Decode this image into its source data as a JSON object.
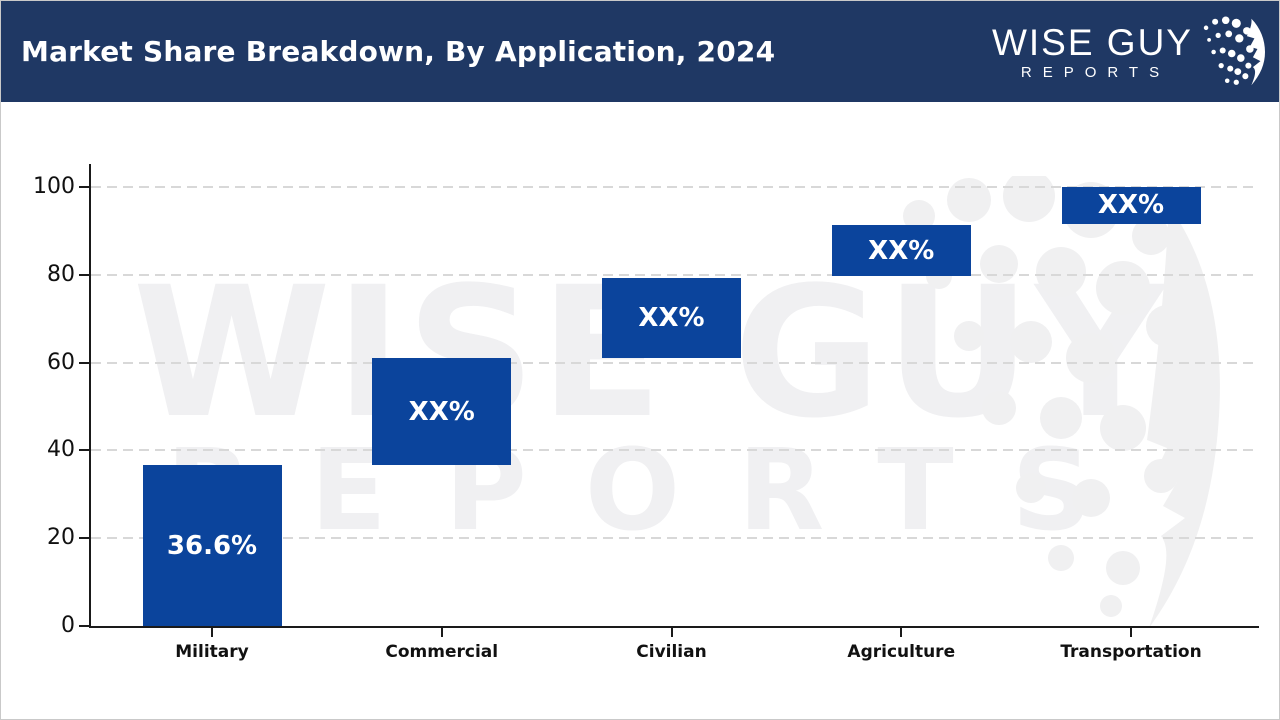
{
  "header": {
    "title": "Market Share Breakdown, By Application, 2024",
    "logo": {
      "line1": "WISE GUY",
      "line2": "REPORTS"
    }
  },
  "watermark": {
    "line1": "WISE GUY",
    "line2": "REPORTS"
  },
  "colors": {
    "header_bg": "#1f3864",
    "title_text": "#ffffff",
    "bar": "#0b449c",
    "bar_label": "#ffffff",
    "grid": "#d8d8d8",
    "axis": "#1a1a1a",
    "tick_text": "#111111",
    "watermark": "#f0f0f2",
    "frame_border": "#c9c9c9"
  },
  "chart_data": {
    "type": "bar",
    "subtype": "waterfall",
    "title": "Market Share Breakdown, By Application, 2024",
    "xlabel": "",
    "ylabel": "",
    "categories": [
      "Military",
      "Commercial",
      "Civilian",
      "Agriculture",
      "Transportation"
    ],
    "segments": [
      {
        "category": "Military",
        "start": 0,
        "end": 36.6,
        "label": "36.6%"
      },
      {
        "category": "Commercial",
        "start": 36.6,
        "end": 61.0,
        "label": "XX%"
      },
      {
        "category": "Civilian",
        "start": 61.0,
        "end": 79.3,
        "label": "XX%"
      },
      {
        "category": "Agriculture",
        "start": 79.7,
        "end": 91.3,
        "label": "XX%"
      },
      {
        "category": "Transportation",
        "start": 91.6,
        "end": 100.0,
        "label": "XX%"
      }
    ],
    "yticks": [
      0,
      20,
      40,
      60,
      80,
      100
    ],
    "ylim": [
      0,
      105
    ],
    "grid": "horizontal-dashed",
    "legend": "none",
    "bar_color": "#0b449c"
  }
}
